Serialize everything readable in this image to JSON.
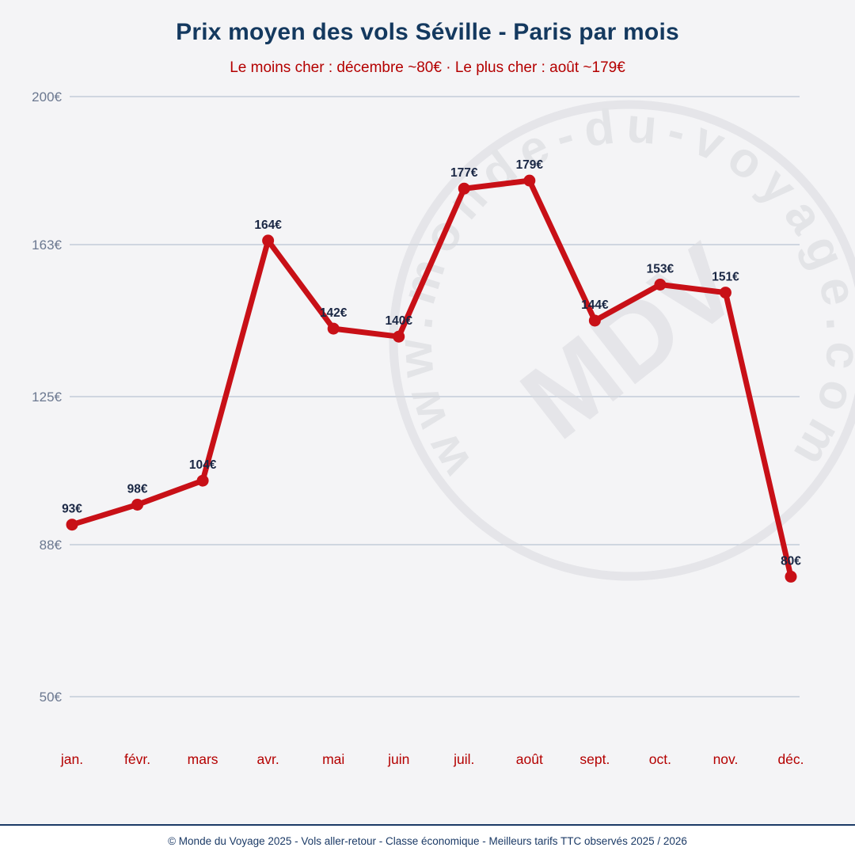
{
  "header": {
    "title": "Prix moyen des vols Séville - Paris par mois",
    "subtitle": "Le moins cher : décembre ~80€ · Le plus cher : août ~179€"
  },
  "watermark": {
    "ring_text": "www.monde-du-voyage.com",
    "center_text": "MDV"
  },
  "footer": {
    "text": "© Monde du Voyage 2025 - Vols aller-retour - Classe économique - Meilleurs tarifs TTC observés 2025 / 2026"
  },
  "chart_data": {
    "type": "line",
    "title": "Prix moyen des vols Séville - Paris par mois",
    "subtitle": "Le moins cher : décembre ~80€ · Le plus cher : août ~179€",
    "categories": [
      "jan.",
      "févr.",
      "mars",
      "avr.",
      "mai",
      "juin",
      "juil.",
      "août",
      "sept.",
      "oct.",
      "nov.",
      "déc."
    ],
    "values": [
      93,
      98,
      104,
      164,
      142,
      140,
      177,
      179,
      144,
      153,
      151,
      80
    ],
    "point_labels": [
      "93€",
      "98€",
      "104€",
      "164€",
      "142€",
      "140€",
      "177€",
      "179€",
      "144€",
      "153€",
      "151€",
      "80€"
    ],
    "y_ticks": [
      200,
      163,
      125,
      88,
      50
    ],
    "y_tick_labels": [
      "200€",
      "163€",
      "125€",
      "88€",
      "50€"
    ],
    "ylim": [
      50,
      200
    ],
    "grid": true,
    "legend": "none",
    "colors": {
      "line": "#c81017",
      "grid": "#b9c3d2",
      "y_label": "#6b7890",
      "x_label": "#b40000",
      "point_label": "#1a2744",
      "watermark": "#d9dadf"
    }
  }
}
